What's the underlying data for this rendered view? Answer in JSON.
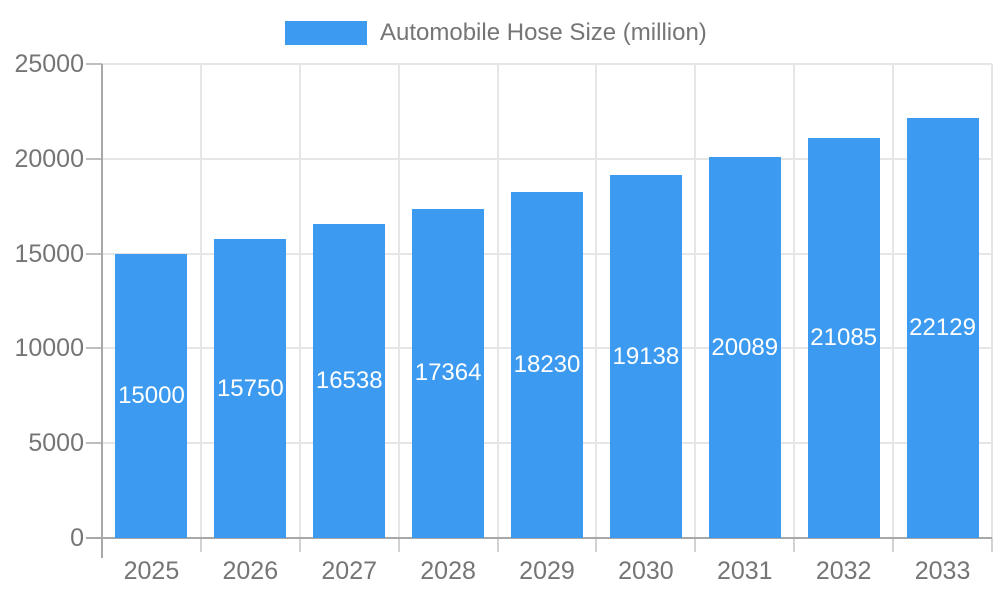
{
  "chart_data": {
    "type": "bar",
    "title": "",
    "categories": [
      "2025",
      "2026",
      "2027",
      "2028",
      "2029",
      "2030",
      "2031",
      "2032",
      "2033"
    ],
    "series": [
      {
        "name": "Automobile Hose Size (million)",
        "values": [
          15000,
          15750,
          16538,
          17364,
          18230,
          19138,
          20089,
          21085,
          22129
        ]
      }
    ],
    "xlabel": "",
    "ylabel": "",
    "ylim": [
      0,
      25000
    ],
    "yticks": [
      0,
      5000,
      10000,
      15000,
      20000,
      25000
    ],
    "grid": true,
    "legend_position": "top-center",
    "value_labels": "inside-center",
    "colors": {
      "bar": "#3C9BF0",
      "bar_label_text": "#FFFFFF",
      "axis_text": "#757575",
      "gridline": "#E6E6E6",
      "axis_line": "#A8A8A8",
      "y_tick": "#BEBEBE",
      "x_tick": "#D2D2D2",
      "background": "#FFFFFF"
    }
  }
}
